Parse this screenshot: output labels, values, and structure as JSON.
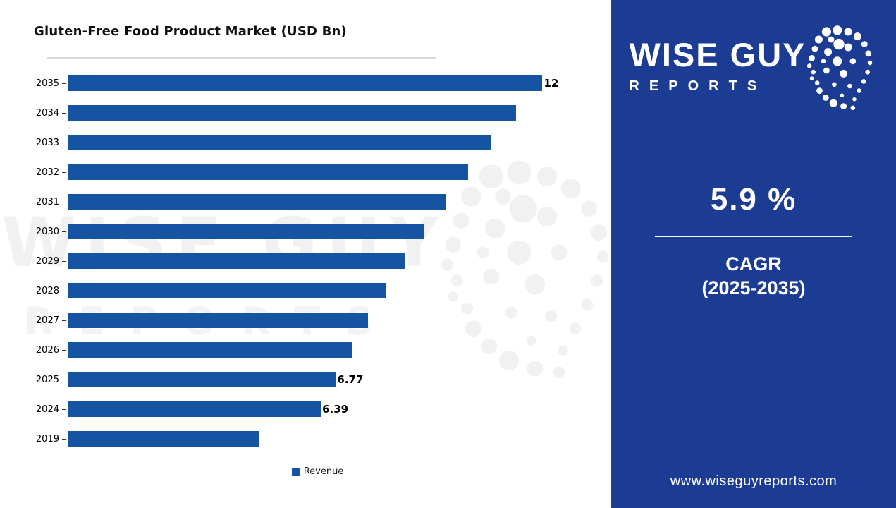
{
  "chart_data": {
    "type": "bar",
    "orientation": "horizontal",
    "title": "Gluten-Free Food Product Market (USD Bn)",
    "categories": [
      "2035",
      "2034",
      "2033",
      "2032",
      "2031",
      "2030",
      "2029",
      "2028",
      "2027",
      "2026",
      "2025",
      "2024",
      "2019"
    ],
    "values": [
      12,
      11.33,
      10.71,
      10.11,
      9.55,
      9.02,
      8.51,
      8.04,
      7.59,
      7.17,
      6.77,
      6.39,
      4.82
    ],
    "value_labels": [
      "12",
      "",
      "",
      "",
      "",
      "",
      "",
      "",
      "",
      "",
      "6.77",
      "6.39",
      ""
    ],
    "xlim": [
      0,
      13.49
    ],
    "xlabel": "",
    "ylabel": "",
    "legend": [
      "Revenue"
    ],
    "legend_position": "bottom",
    "grid": false
  },
  "colors": {
    "bar": "#1553A3",
    "sidebar_bg": "#1C3C94",
    "value_label": "#000000"
  },
  "watermark": {
    "line1": "WISE GUY",
    "line2": "REPORTS"
  },
  "sidebar": {
    "logo_title": "WISE GUY",
    "logo_subtitle": "REPORTS",
    "cagr_value": "5.9 %",
    "cagr_line1": "CAGR",
    "cagr_line2": "(2025-2035)",
    "website": "www.wiseguyreports.com"
  }
}
